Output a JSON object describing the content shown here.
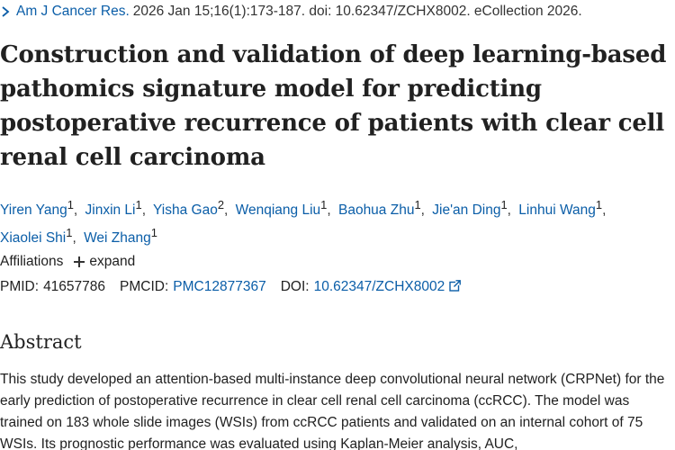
{
  "citation": {
    "journal": "Am J Cancer Res.",
    "details": "2026 Jan 15;16(1):173-187. doi: 10.62347/ZCHX8002. eCollection 2026."
  },
  "title": "Construction and validation of deep learning-based pathomics signature model for predicting postoperative recurrence of patients with clear cell renal cell carcinoma",
  "authors": [
    {
      "name": "Yiren Yang",
      "aff": "1"
    },
    {
      "name": "Jinxin Li",
      "aff": "1"
    },
    {
      "name": "Yisha Gao",
      "aff": "2"
    },
    {
      "name": "Wenqiang Liu",
      "aff": "1"
    },
    {
      "name": "Baohua Zhu",
      "aff": "1"
    },
    {
      "name": "Jie'an Ding",
      "aff": "1"
    },
    {
      "name": "Linhui Wang",
      "aff": "1"
    },
    {
      "name": "Xiaolei Shi",
      "aff": "1"
    },
    {
      "name": "Wei Zhang",
      "aff": "1"
    }
  ],
  "author_separator": ",",
  "affiliations": {
    "label": "Affiliations",
    "expand_label": "expand"
  },
  "identifiers": {
    "pmid_label": "PMID:",
    "pmid": "41657786",
    "pmcid_label": "PMCID:",
    "pmcid": "PMC12877367",
    "doi_label": "DOI:",
    "doi": "10.62347/ZCHX8002"
  },
  "abstract": {
    "heading": "Abstract",
    "text": "This study developed an attention-based multi-instance deep convolutional neural network (CRPNet) for the early prediction of postoperative recurrence in clear cell renal cell carcinoma (ccRCC). The model was trained on 183 whole slide images (WSIs) from ccRCC patients and validated on an internal cohort of 75 WSIs. Its prognostic performance was evaluated using Kaplan-Meier analysis, AUC,"
  },
  "colors": {
    "link": "#0b5ea8",
    "text": "#212121"
  }
}
